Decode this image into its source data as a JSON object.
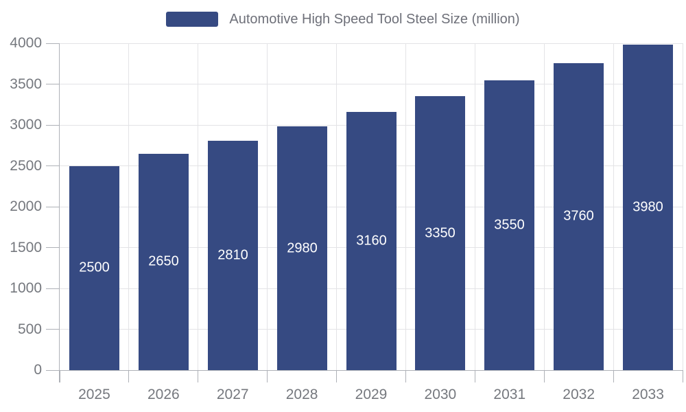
{
  "chart_data": {
    "type": "bar",
    "title": "Automotive High Speed Tool Steel Size (million)",
    "categories": [
      "2025",
      "2026",
      "2027",
      "2028",
      "2029",
      "2030",
      "2031",
      "2032",
      "2033"
    ],
    "values": [
      2500,
      2650,
      2810,
      2980,
      3160,
      3350,
      3550,
      3760,
      3980
    ],
    "series": [
      {
        "name": "Automotive High Speed Tool Steel Size (million)",
        "values": [
          2500,
          2650,
          2810,
          2980,
          3160,
          3350,
          3550,
          3760,
          3980
        ]
      }
    ],
    "xlabel": "",
    "ylabel": "",
    "ylim": [
      0,
      4000
    ],
    "ytick_step": 500,
    "grid": true,
    "legend_position": "top-center",
    "value_labels": "inside-center",
    "colors": {
      "bar": "#364a82",
      "value_label": "#ffffff",
      "axis_text": "#75787e",
      "legend_text": "#6e7079",
      "gridline": "#e3e3e6",
      "axis_line": "#aeb1b7",
      "background": "#ffffff"
    }
  }
}
